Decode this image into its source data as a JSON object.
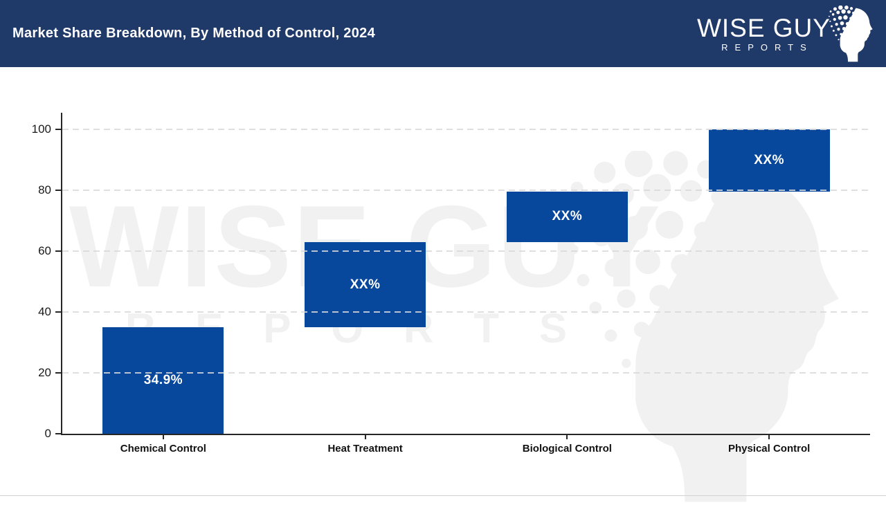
{
  "header": {
    "title": "Market Share Breakdown, By Method of Control, 2024",
    "logo": {
      "brand_line1": "WISE GUY",
      "brand_line2": "REPORTS",
      "icon": "face-profile-dots-icon"
    }
  },
  "watermark": {
    "line1": "WISE GUY",
    "line2": "REPORTS",
    "icon": "face-profile-dots-watermark"
  },
  "colors": {
    "header_bg": "#1F3968",
    "bar": "#07479C",
    "grid": "#D9D9D9",
    "axis": "#262626",
    "watermark": "#F1F1F2",
    "title_text": "#FFFFFF",
    "bar_label_text": "#FFFFFF"
  },
  "chart_data": {
    "type": "bar",
    "subtype": "waterfall",
    "title": "Market Share Breakdown, By Method of Control, 2024",
    "categories": [
      "Chemical Control",
      "Heat Treatment",
      "Biological Control",
      "Physical Control"
    ],
    "segments": [
      {
        "category": "Chemical Control",
        "start": 0,
        "end": 34.9,
        "label": "34.9%"
      },
      {
        "category": "Heat Treatment",
        "start": 34.9,
        "end": 63.0,
        "label": "XX%"
      },
      {
        "category": "Biological Control",
        "start": 63.0,
        "end": 79.5,
        "label": "XX%"
      },
      {
        "category": "Physical Control",
        "start": 79.5,
        "end": 100.0,
        "label": "XX%"
      }
    ],
    "yticks": [
      0,
      20,
      40,
      60,
      80,
      100
    ],
    "ylim": [
      0,
      105.45
    ],
    "xlabel": "",
    "ylabel": "",
    "grid": "horizontal-dashed",
    "legend": "none"
  }
}
